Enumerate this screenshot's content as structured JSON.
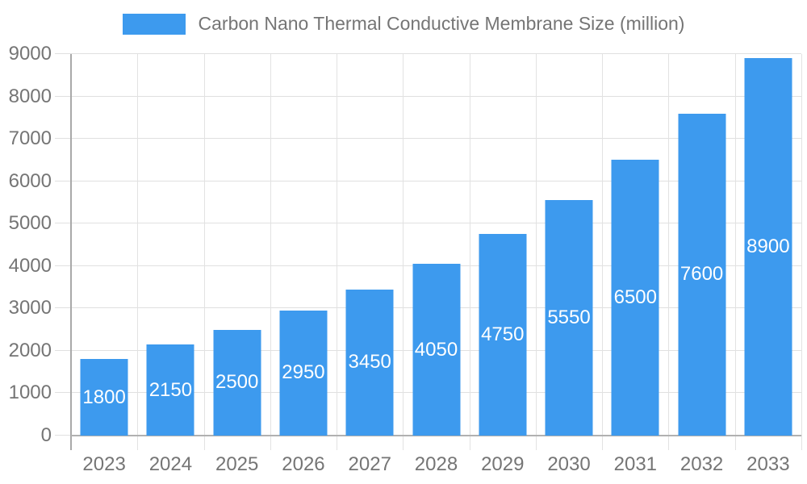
{
  "legend": {
    "label": "Carbon Nano Thermal Conductive Membrane Size (million)"
  },
  "chart_data": {
    "type": "bar",
    "title": "Carbon Nano Thermal Conductive Membrane Size (million)",
    "categories": [
      "2023",
      "2024",
      "2025",
      "2026",
      "2027",
      "2028",
      "2029",
      "2030",
      "2031",
      "2032",
      "2033"
    ],
    "values": [
      1800,
      2150,
      2500,
      2950,
      3450,
      4050,
      4750,
      5550,
      6500,
      7600,
      8900
    ],
    "xlabel": "",
    "ylabel": "",
    "ylim": [
      0,
      9000
    ],
    "ytick_step": 1000,
    "ytick_labels": [
      "0",
      "1000",
      "2000",
      "3000",
      "4000",
      "5000",
      "6000",
      "7000",
      "8000",
      "9000"
    ],
    "grid": true,
    "legend_position": "top-center",
    "colors": {
      "bar": "#3D9AEE",
      "bar_value_label": "#ffffff",
      "axis_text": "#757575",
      "gridline": "#e0e0e0",
      "axis_line": "#b1b1b1",
      "background": "#ffffff"
    }
  }
}
